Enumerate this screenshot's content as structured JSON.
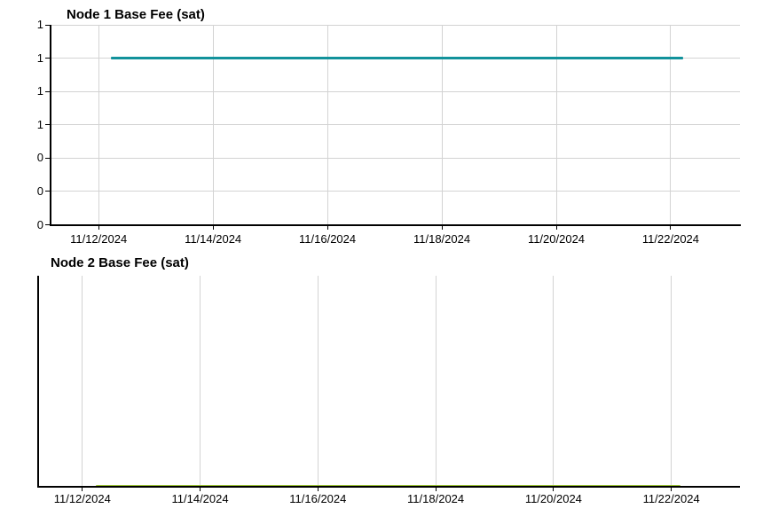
{
  "colors": {
    "background": "#FFFFFF",
    "axis": "#000000",
    "grid": "#D3D3D3",
    "text": "#000000",
    "node1_line": "#12929B",
    "node2_line": "#9BC234"
  },
  "chart_data": [
    {
      "type": "line",
      "title": "Node 1 Base Fee (sat)",
      "xlabel": "",
      "ylabel": "",
      "x_unit": "days since 2024-11-12",
      "xlim": [
        -0.84,
        11.21
      ],
      "ylim": [
        0,
        1.2
      ],
      "grid": true,
      "legend": "none",
      "x_ticks": [
        {
          "x": 0,
          "label": "11/12/2024"
        },
        {
          "x": 2,
          "label": "11/14/2024"
        },
        {
          "x": 4,
          "label": "11/16/2024"
        },
        {
          "x": 6,
          "label": "11/18/2024"
        },
        {
          "x": 8,
          "label": "11/20/2024"
        },
        {
          "x": 10,
          "label": "11/22/2024"
        }
      ],
      "y_ticks": [
        {
          "y": 1.2,
          "label": "1"
        },
        {
          "y": 1.0,
          "label": "1"
        },
        {
          "y": 0.8,
          "label": "1"
        },
        {
          "y": 0.6,
          "label": "1"
        },
        {
          "y": 0.4,
          "label": "0"
        },
        {
          "y": 0.2,
          "label": "0"
        },
        {
          "y": 0.0,
          "label": "0"
        }
      ],
      "series": [
        {
          "name": "Node 1 base fee",
          "color": "#12929B",
          "width": 3,
          "points": [
            {
              "x": 0.22,
              "y": 1
            },
            {
              "x": 10.22,
              "y": 1
            }
          ]
        }
      ]
    },
    {
      "type": "line",
      "title": "Node 2 Base Fee (sat)",
      "xlabel": "",
      "ylabel": "",
      "x_unit": "days since 2024-11-12",
      "xlim": [
        -0.75,
        11.15
      ],
      "ylim": [
        0,
        1.2
      ],
      "grid": "vertical-only",
      "legend": "none",
      "x_ticks": [
        {
          "x": 0,
          "label": "11/12/2024"
        },
        {
          "x": 2,
          "label": "11/14/2024"
        },
        {
          "x": 4,
          "label": "11/16/2024"
        },
        {
          "x": 6,
          "label": "11/18/2024"
        },
        {
          "x": 8,
          "label": "11/20/2024"
        },
        {
          "x": 10,
          "label": "11/22/2024"
        }
      ],
      "y_ticks": [],
      "series": [
        {
          "name": "Node 2 base fee",
          "color": "#9BC234",
          "width": 2,
          "points": [
            {
              "x": 0.23,
              "y": 0
            },
            {
              "x": 10.16,
              "y": 0
            }
          ]
        }
      ]
    }
  ]
}
